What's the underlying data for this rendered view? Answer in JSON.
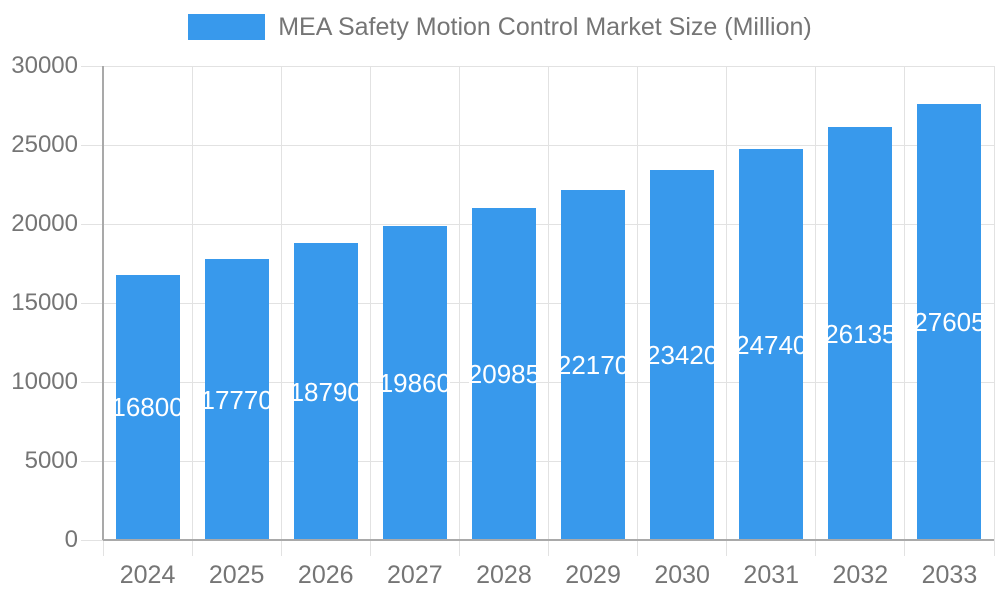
{
  "chart_data": {
    "type": "bar",
    "title": "MEA Safety Motion Control Market Size (Million)",
    "legend_position": "top",
    "categories": [
      "2024",
      "2025",
      "2026",
      "2027",
      "2028",
      "2029",
      "2030",
      "2031",
      "2032",
      "2033"
    ],
    "values": [
      16800,
      17770,
      18790,
      19860,
      20985,
      22170,
      23420,
      24740,
      26135,
      27605
    ],
    "xlabel": "",
    "ylabel": "",
    "ylim": [
      0,
      30000
    ],
    "yticks": [
      0,
      5000,
      10000,
      15000,
      20000,
      25000,
      30000
    ],
    "grid": true,
    "value_label_position": "inside-center",
    "colors": {
      "bar": "#3899EC",
      "axis_text": "#757575",
      "value_label_text": "#FFFFFF",
      "grid_line": "#E2E2E2",
      "axis_line": "#A9A9A9",
      "background": "#FFFFFF"
    }
  }
}
